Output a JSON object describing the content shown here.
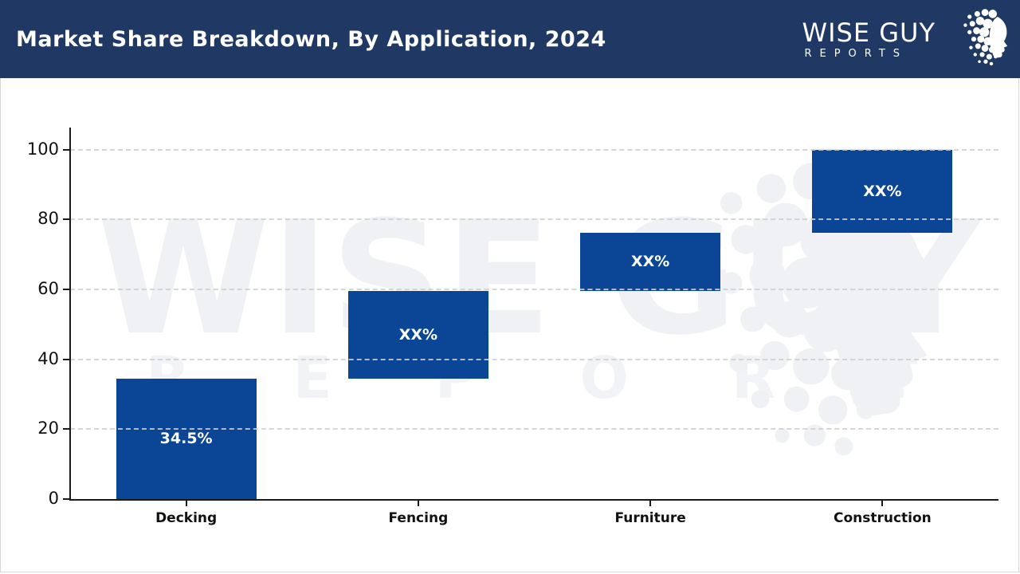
{
  "header": {
    "title": "Market Share Breakdown, By Application, 2024",
    "bg_color": "#203864"
  },
  "logo": {
    "line1": "WISE GUY",
    "line2": "REPORTS"
  },
  "watermark": {
    "line1": "WISE GUY",
    "line2": "R E P O R T S"
  },
  "chart_data": {
    "type": "bar",
    "subtype": "waterfall-floating-bars",
    "title": "Market Share Breakdown, By Application, 2024",
    "categories": [
      "Decking",
      "Fencing",
      "Furniture",
      "Construction"
    ],
    "segments": [
      {
        "category": "Decking",
        "start": 0,
        "end": 34.5,
        "label": "34.5%"
      },
      {
        "category": "Fencing",
        "start": 34.5,
        "end": 59.5,
        "label": "XX%"
      },
      {
        "category": "Furniture",
        "start": 59.5,
        "end": 76.2,
        "label": "XX%"
      },
      {
        "category": "Construction",
        "start": 76.2,
        "end": 100,
        "label": "XX%"
      }
    ],
    "y_ticks": [
      0,
      20,
      40,
      60,
      80,
      100
    ],
    "ylim": [
      0,
      106
    ],
    "xlabel": "",
    "ylabel": "",
    "grid": "horizontal-dashed-over-bars",
    "legend": "none",
    "bar_color": "#0b4596",
    "bar_label_color": "#ffffff",
    "axis_color": "#1a1a1a",
    "grid_color": "#cfcfcf"
  }
}
